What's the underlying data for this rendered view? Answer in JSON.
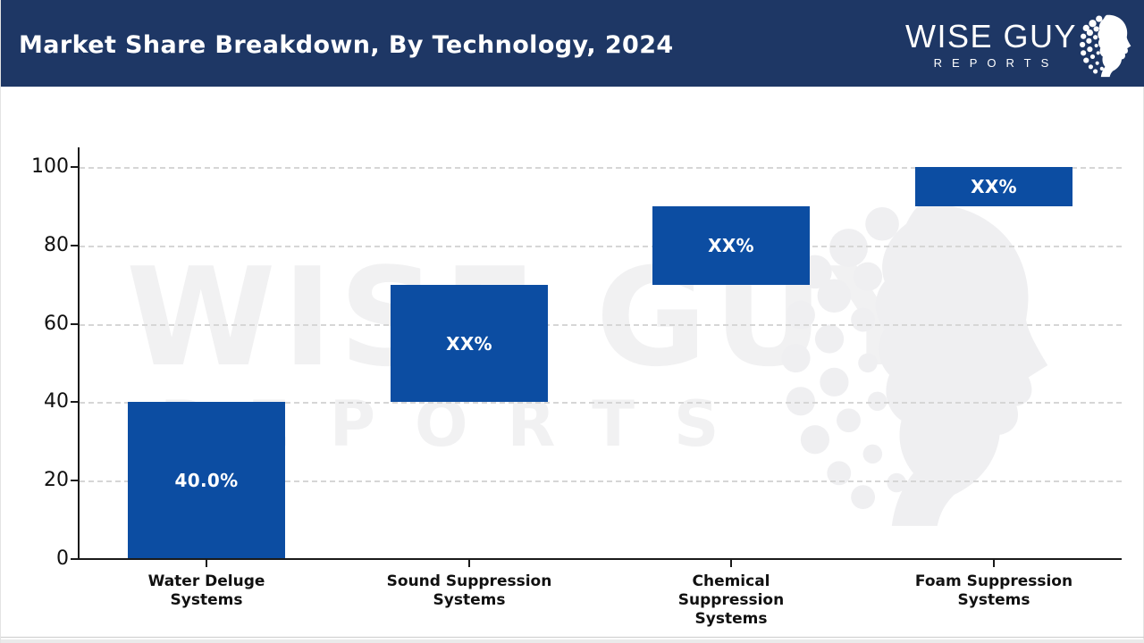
{
  "header": {
    "title": "Market Share Breakdown, By Technology, 2024",
    "logo": {
      "line1": "WISE GUY",
      "line2": "REPORTS"
    }
  },
  "watermark": {
    "line1": "WISE GUY",
    "line2": "REPORTS"
  },
  "colors": {
    "header_bg": "#1e3765",
    "bar": "#0c4da2",
    "grid": "#d6d6d6",
    "axis": "#1a1a1a",
    "bar_label": "#ffffff",
    "title_text": "#ffffff",
    "watermark_text": "#f1f1f2",
    "watermark_head": "#efeff1"
  },
  "chart_data": {
    "type": "bar",
    "subtype": "waterfall",
    "title": "Market Share Breakdown, By Technology, 2024",
    "categories": [
      {
        "name": "Water Deluge Systems",
        "lines": [
          "Water Deluge",
          "Systems"
        ]
      },
      {
        "name": "Sound Suppression Systems",
        "lines": [
          "Sound Suppression",
          "Systems"
        ]
      },
      {
        "name": "Chemical Suppression Systems",
        "lines": [
          "Chemical",
          "Suppression",
          "Systems"
        ]
      },
      {
        "name": "Foam Suppression Systems",
        "lines": [
          "Foam Suppression",
          "Systems"
        ]
      }
    ],
    "segments": [
      {
        "category": "Water Deluge Systems",
        "start": 0,
        "end": 40,
        "label": "40.0%"
      },
      {
        "category": "Sound Suppression Systems",
        "start": 40,
        "end": 70,
        "label": "XX%"
      },
      {
        "category": "Chemical Suppression Systems",
        "start": 70,
        "end": 90,
        "label": "XX%"
      },
      {
        "category": "Foam Suppression Systems",
        "start": 90,
        "end": 100,
        "label": "XX%"
      }
    ],
    "ylim": [
      0,
      100
    ],
    "yticks": [
      0,
      20,
      40,
      60,
      80,
      100
    ],
    "xlabel": "",
    "ylabel": "",
    "grid": "horizontal-dashed",
    "legend": "none"
  }
}
